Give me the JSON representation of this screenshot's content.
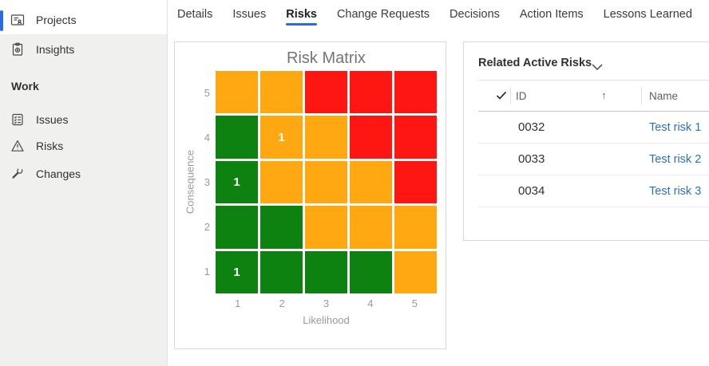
{
  "colors": {
    "accent": "#2B6BE2",
    "link": "#2C6FBE"
  },
  "sidebar": {
    "items": [
      {
        "label": "Projects",
        "icon": "projects-icon",
        "selected": true
      },
      {
        "label": "Insights",
        "icon": "insights-icon",
        "selected": false
      }
    ],
    "section_label": "Work",
    "work_items": [
      {
        "label": "Issues",
        "icon": "checklist-icon"
      },
      {
        "label": "Risks",
        "icon": "warning-icon"
      },
      {
        "label": "Changes",
        "icon": "wrench-icon"
      }
    ]
  },
  "tabs": {
    "items": [
      "Details",
      "Issues",
      "Risks",
      "Change Requests",
      "Decisions",
      "Action Items",
      "Lessons Learned"
    ],
    "active": "Risks"
  },
  "chart_data": {
    "type": "heatmap",
    "title": "Risk Matrix",
    "xlabel": "Likelihood",
    "ylabel": "Consequence",
    "x_ticks": [
      "1",
      "2",
      "3",
      "4",
      "5"
    ],
    "y_ticks": [
      "5",
      "4",
      "3",
      "2",
      "1"
    ],
    "severity_colors": {
      "low": "#0E8210",
      "medium": "#FFA812",
      "high": "#FE1612"
    },
    "rows": [
      {
        "consequence": "5",
        "cells": [
          {
            "severity": "medium",
            "count": ""
          },
          {
            "severity": "medium",
            "count": ""
          },
          {
            "severity": "high",
            "count": ""
          },
          {
            "severity": "high",
            "count": ""
          },
          {
            "severity": "high",
            "count": ""
          }
        ]
      },
      {
        "consequence": "4",
        "cells": [
          {
            "severity": "low",
            "count": ""
          },
          {
            "severity": "medium",
            "count": "1"
          },
          {
            "severity": "medium",
            "count": ""
          },
          {
            "severity": "high",
            "count": ""
          },
          {
            "severity": "high",
            "count": ""
          }
        ]
      },
      {
        "consequence": "3",
        "cells": [
          {
            "severity": "low",
            "count": "1"
          },
          {
            "severity": "medium",
            "count": ""
          },
          {
            "severity": "medium",
            "count": ""
          },
          {
            "severity": "medium",
            "count": ""
          },
          {
            "severity": "high",
            "count": ""
          }
        ]
      },
      {
        "consequence": "2",
        "cells": [
          {
            "severity": "low",
            "count": ""
          },
          {
            "severity": "low",
            "count": ""
          },
          {
            "severity": "medium",
            "count": ""
          },
          {
            "severity": "medium",
            "count": ""
          },
          {
            "severity": "medium",
            "count": ""
          }
        ]
      },
      {
        "consequence": "1",
        "cells": [
          {
            "severity": "low",
            "count": "1"
          },
          {
            "severity": "low",
            "count": ""
          },
          {
            "severity": "low",
            "count": ""
          },
          {
            "severity": "low",
            "count": ""
          },
          {
            "severity": "medium",
            "count": ""
          }
        ]
      }
    ]
  },
  "related_risks": {
    "title": "Related Active Risks",
    "columns": {
      "select_icon": "checkmark-icon",
      "id_label": "ID",
      "sort_indicator": "↑",
      "name_label": "Name"
    },
    "rows": [
      {
        "id": "0032",
        "name": "Test risk 1"
      },
      {
        "id": "0033",
        "name": "Test risk 2"
      },
      {
        "id": "0034",
        "name": "Test risk 3"
      }
    ]
  }
}
